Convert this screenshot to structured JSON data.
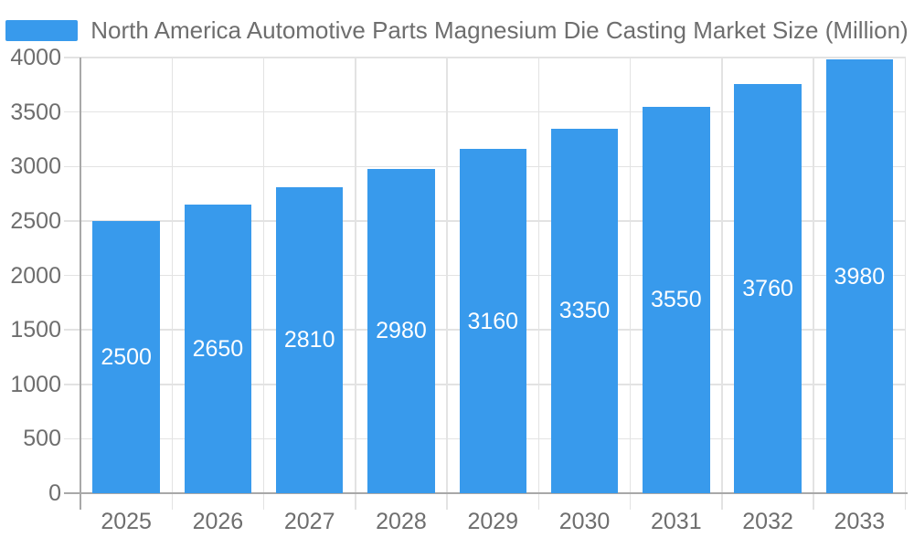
{
  "chart_data": {
    "type": "bar",
    "title": "North America Automotive Parts Magnesium Die Casting Market Size (Million)",
    "categories": [
      "2025",
      "2026",
      "2027",
      "2028",
      "2029",
      "2030",
      "2031",
      "2032",
      "2033"
    ],
    "values": [
      2500,
      2650,
      2810,
      2980,
      3160,
      3350,
      3550,
      3760,
      3980
    ],
    "xlabel": "",
    "ylabel": "",
    "ylim": [
      0,
      4000
    ],
    "ytick_step": 500,
    "yticks": [
      0,
      500,
      1000,
      1500,
      2000,
      2500,
      3000,
      3500,
      4000
    ],
    "legend_position": "top",
    "grid": true,
    "value_label_position": "inside-center",
    "colors": {
      "bar": "#389aec",
      "value_text": "#ffffff",
      "axis_text": "#6e6e6e",
      "grid_line": "#e3e3e3",
      "axis_line": "#a8a8a8",
      "background": "#ffffff"
    }
  }
}
